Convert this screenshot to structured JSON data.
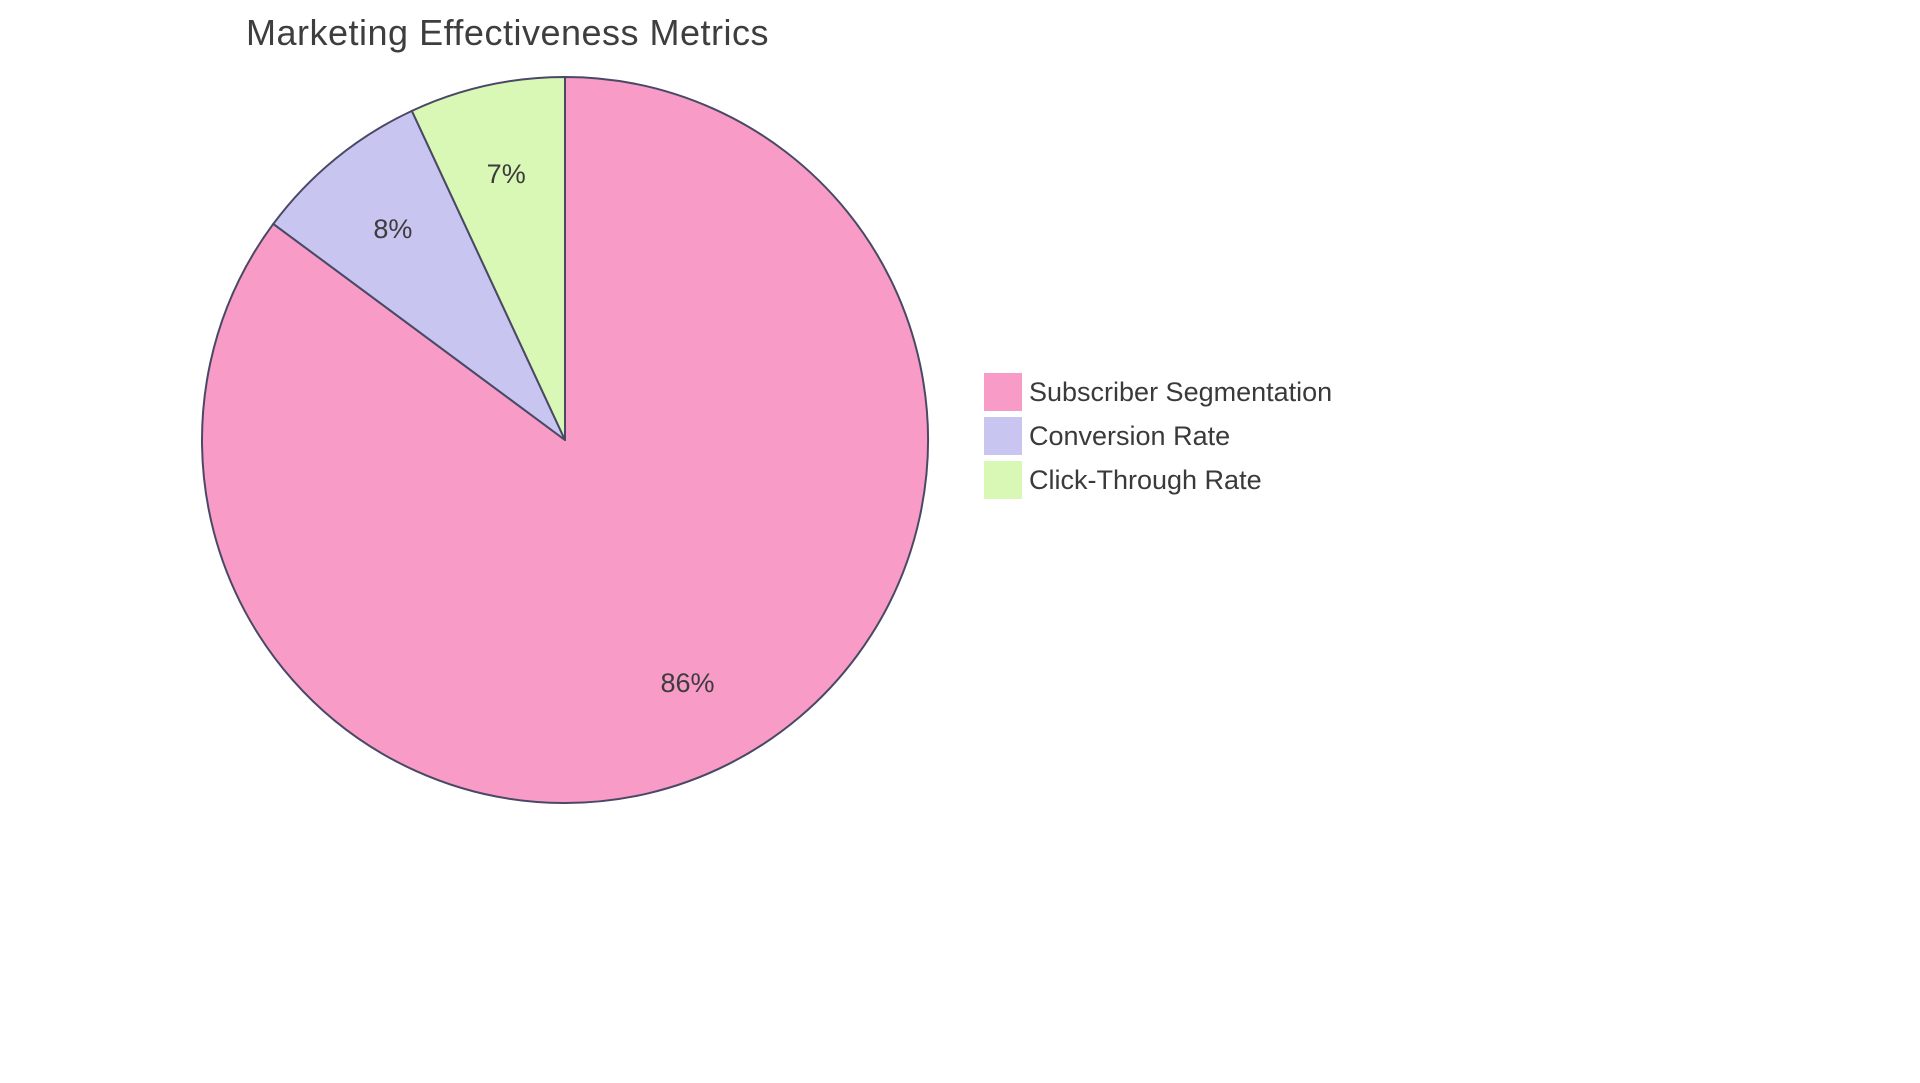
{
  "page": {
    "background": "#ffffff"
  },
  "chart_data": {
    "type": "pie",
    "title": "Marketing Effectiveness Metrics",
    "categories": [
      "Subscriber Segmentation",
      "Conversion Rate",
      "Click-Through Rate"
    ],
    "values": [
      86,
      8,
      7
    ],
    "slice_labels": [
      "86%",
      "8%",
      "7%"
    ],
    "colors": [
      "#F99BC7",
      "#C9C5F1",
      "#D9F7B5"
    ],
    "stroke_color": "#494966",
    "stroke_width": 2,
    "start_angle_deg": 0,
    "direction": "clockwise",
    "legend_position": "right",
    "label_radius_fraction": 0.75
  }
}
